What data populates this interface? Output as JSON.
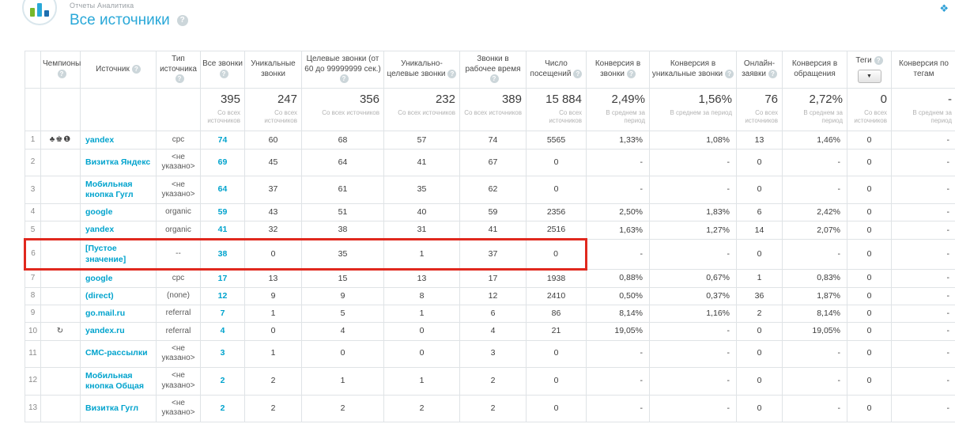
{
  "page": {
    "breadcrumb": "Отчеты Аналитика",
    "title": "Все источники",
    "help_glyph": "?",
    "corner_icon_glyph": "❖",
    "accent_color": "#29a8d8",
    "link_color": "#00a3cd",
    "highlight_color": "#e0281e"
  },
  "table": {
    "columns": [
      {
        "key": "num",
        "label": "",
        "help": false
      },
      {
        "key": "champions",
        "label": "Чемпионы",
        "help": true
      },
      {
        "key": "source",
        "label": "Источник",
        "help": true
      },
      {
        "key": "type",
        "label": "Тип источника",
        "help": true
      },
      {
        "key": "all_calls",
        "label": "Все звонки",
        "help": true
      },
      {
        "key": "unique_calls",
        "label": "Уникальные звонки",
        "help": false
      },
      {
        "key": "target_calls",
        "label": "Целевые звонки (от 60 до 99999999 сек.)",
        "help": true
      },
      {
        "key": "unique_target_calls",
        "label": "Уникально-целевые звонки",
        "help": true
      },
      {
        "key": "work_time_calls",
        "label": "Звонки в рабочее время",
        "help": true
      },
      {
        "key": "visits",
        "label": "Число посещений",
        "help": true
      },
      {
        "key": "conv_calls",
        "label": "Конверсия в звонки",
        "help": true
      },
      {
        "key": "conv_unique_calls",
        "label": "Конверсия в уникальные звонки",
        "help": true
      },
      {
        "key": "online_requests",
        "label": "Онлайн-заявки",
        "help": true
      },
      {
        "key": "conv_appeals",
        "label": "Конверсия в обращения",
        "help": false
      },
      {
        "key": "tags",
        "label": "Теги",
        "help": true,
        "filter_button": "▼"
      },
      {
        "key": "conv_tags",
        "label": "Конверсия по тегам",
        "help": false
      }
    ],
    "summary": {
      "all_calls": {
        "value": "395",
        "note": "Со всех источников"
      },
      "unique_calls": {
        "value": "247",
        "note": "Со всех источников"
      },
      "target_calls": {
        "value": "356",
        "note": "Со всех источников"
      },
      "unique_target_calls": {
        "value": "232",
        "note": "Со всех источников"
      },
      "work_time_calls": {
        "value": "389",
        "note": "Со всех источников"
      },
      "visits": {
        "value": "15 884",
        "note": "Со всех источников"
      },
      "conv_calls": {
        "value": "2,49%",
        "note": "В среднем за период"
      },
      "conv_unique_calls": {
        "value": "1,56%",
        "note": "В среднем за период"
      },
      "online_requests": {
        "value": "76",
        "note": "Со всех источников"
      },
      "conv_appeals": {
        "value": "2,72%",
        "note": "В среднем за период"
      },
      "tags": {
        "value": "0",
        "note": "Со всех источников"
      },
      "conv_tags": {
        "value": "-",
        "note": "В среднем за период"
      }
    },
    "rows": [
      {
        "num": "1",
        "champions": "♣♚❶",
        "source": "yandex",
        "type": "cpc",
        "all_calls": "74",
        "unique_calls": "60",
        "target_calls": "68",
        "unique_target_calls": "57",
        "work_time_calls": "74",
        "visits": "5565",
        "conv_calls": "1,33%",
        "conv_unique_calls": "1,08%",
        "online_requests": "13",
        "conv_appeals": "1,46%",
        "tags": "0",
        "conv_tags": "-"
      },
      {
        "num": "2",
        "champions": "",
        "source": "Визитка Яндекс",
        "type": "<не указано>",
        "all_calls": "69",
        "unique_calls": "45",
        "target_calls": "64",
        "unique_target_calls": "41",
        "work_time_calls": "67",
        "visits": "0",
        "conv_calls": "-",
        "conv_unique_calls": "-",
        "online_requests": "0",
        "conv_appeals": "-",
        "tags": "0",
        "conv_tags": "-"
      },
      {
        "num": "3",
        "champions": "",
        "source": "Мобильная кнопка Гугл",
        "type": "<не указано>",
        "all_calls": "64",
        "unique_calls": "37",
        "target_calls": "61",
        "unique_target_calls": "35",
        "work_time_calls": "62",
        "visits": "0",
        "conv_calls": "-",
        "conv_unique_calls": "-",
        "online_requests": "0",
        "conv_appeals": "-",
        "tags": "0",
        "conv_tags": "-"
      },
      {
        "num": "4",
        "champions": "",
        "source": "google",
        "type": "organic",
        "all_calls": "59",
        "unique_calls": "43",
        "target_calls": "51",
        "unique_target_calls": "40",
        "work_time_calls": "59",
        "visits": "2356",
        "conv_calls": "2,50%",
        "conv_unique_calls": "1,83%",
        "online_requests": "6",
        "conv_appeals": "2,42%",
        "tags": "0",
        "conv_tags": "-"
      },
      {
        "num": "5",
        "champions": "",
        "source": "yandex",
        "type": "organic",
        "all_calls": "41",
        "unique_calls": "32",
        "target_calls": "38",
        "unique_target_calls": "31",
        "work_time_calls": "41",
        "visits": "2516",
        "conv_calls": "1,63%",
        "conv_unique_calls": "1,27%",
        "online_requests": "14",
        "conv_appeals": "2,07%",
        "tags": "0",
        "conv_tags": "-"
      },
      {
        "num": "6",
        "champions": "",
        "source": "[Пустое значение]",
        "type": "--",
        "all_calls": "38",
        "unique_calls": "0",
        "target_calls": "35",
        "unique_target_calls": "1",
        "work_time_calls": "37",
        "visits": "0",
        "conv_calls": "-",
        "conv_unique_calls": "-",
        "online_requests": "0",
        "conv_appeals": "-",
        "tags": "0",
        "conv_tags": "-",
        "highlight": true
      },
      {
        "num": "7",
        "champions": "",
        "source": "google",
        "type": "cpc",
        "all_calls": "17",
        "unique_calls": "13",
        "target_calls": "15",
        "unique_target_calls": "13",
        "work_time_calls": "17",
        "visits": "1938",
        "conv_calls": "0,88%",
        "conv_unique_calls": "0,67%",
        "online_requests": "1",
        "conv_appeals": "0,83%",
        "tags": "0",
        "conv_tags": "-"
      },
      {
        "num": "8",
        "champions": "",
        "source": "(direct)",
        "type": "(none)",
        "all_calls": "12",
        "unique_calls": "9",
        "target_calls": "9",
        "unique_target_calls": "8",
        "work_time_calls": "12",
        "visits": "2410",
        "conv_calls": "0,50%",
        "conv_unique_calls": "0,37%",
        "online_requests": "36",
        "conv_appeals": "1,87%",
        "tags": "0",
        "conv_tags": "-"
      },
      {
        "num": "9",
        "champions": "",
        "source": "go.mail.ru",
        "type": "referral",
        "all_calls": "7",
        "unique_calls": "1",
        "target_calls": "5",
        "unique_target_calls": "1",
        "work_time_calls": "6",
        "visits": "86",
        "conv_calls": "8,14%",
        "conv_unique_calls": "1,16%",
        "online_requests": "2",
        "conv_appeals": "8,14%",
        "tags": "0",
        "conv_tags": "-"
      },
      {
        "num": "10",
        "champions": "↻",
        "source": "yandex.ru",
        "type": "referral",
        "all_calls": "4",
        "unique_calls": "0",
        "target_calls": "4",
        "unique_target_calls": "0",
        "work_time_calls": "4",
        "visits": "21",
        "conv_calls": "19,05%",
        "conv_unique_calls": "-",
        "online_requests": "0",
        "conv_appeals": "19,05%",
        "tags": "0",
        "conv_tags": "-"
      },
      {
        "num": "11",
        "champions": "",
        "source": "СМС-рассылки",
        "type": "<не указано>",
        "all_calls": "3",
        "unique_calls": "1",
        "target_calls": "0",
        "unique_target_calls": "0",
        "work_time_calls": "3",
        "visits": "0",
        "conv_calls": "-",
        "conv_unique_calls": "-",
        "online_requests": "0",
        "conv_appeals": "-",
        "tags": "0",
        "conv_tags": "-"
      },
      {
        "num": "12",
        "champions": "",
        "source": "Мобильная кнопка Общая",
        "type": "<не указано>",
        "all_calls": "2",
        "unique_calls": "2",
        "target_calls": "1",
        "unique_target_calls": "1",
        "work_time_calls": "2",
        "visits": "0",
        "conv_calls": "-",
        "conv_unique_calls": "-",
        "online_requests": "0",
        "conv_appeals": "-",
        "tags": "0",
        "conv_tags": "-"
      },
      {
        "num": "13",
        "champions": "",
        "source": "Визитка Гугл",
        "type": "<не указано>",
        "all_calls": "2",
        "unique_calls": "2",
        "target_calls": "2",
        "unique_target_calls": "2",
        "work_time_calls": "2",
        "visits": "0",
        "conv_calls": "-",
        "conv_unique_calls": "-",
        "online_requests": "0",
        "conv_appeals": "-",
        "tags": "0",
        "conv_tags": "-"
      }
    ]
  }
}
